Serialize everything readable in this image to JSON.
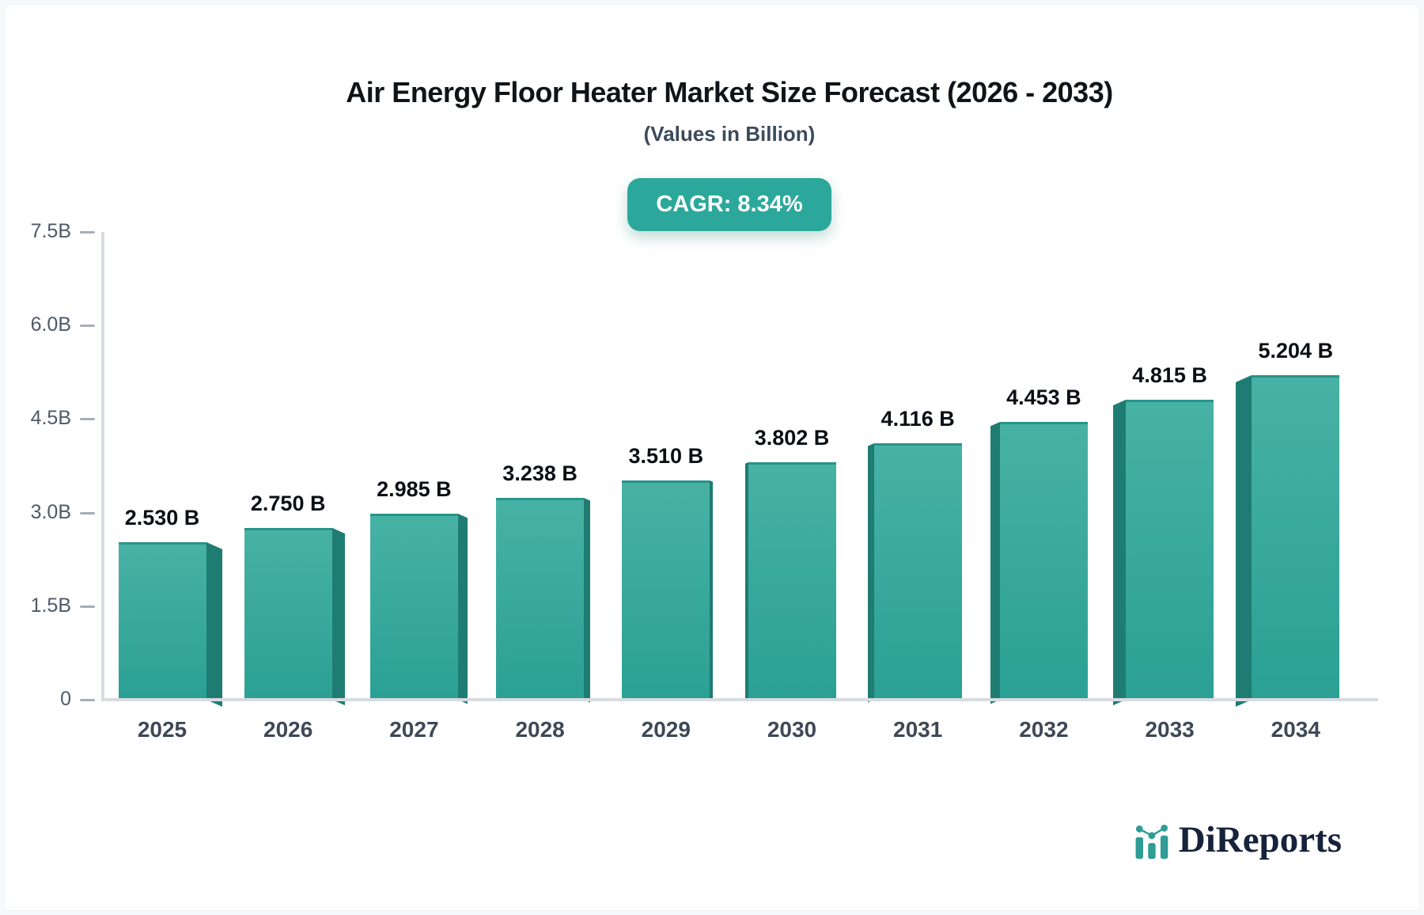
{
  "header": {
    "title": "Air Energy Floor Heater Market Size Forecast (2026 - 2033)",
    "subtitle": "(Values in Billion)",
    "cagr_badge": "CAGR: 8.34%"
  },
  "chart_data": {
    "type": "bar",
    "title": "Air Energy Floor Heater Market Size Forecast (2026 - 2033)",
    "subtitle": "(Values in Billion)",
    "xlabel": "",
    "ylabel": "Values in Billion",
    "ylim": [
      0,
      7.5
    ],
    "grid": false,
    "legend": false,
    "categories": [
      "2025",
      "2026",
      "2027",
      "2028",
      "2029",
      "2030",
      "2031",
      "2032",
      "2033",
      "2034"
    ],
    "values": [
      2.53,
      2.75,
      2.985,
      3.238,
      3.51,
      3.802,
      4.116,
      4.453,
      4.815,
      5.204
    ],
    "value_labels": [
      "2.530 B",
      "2.750 B",
      "2.985 B",
      "3.238 B",
      "3.510 B",
      "3.802 B",
      "4.116 B",
      "4.453 B",
      "4.815 B",
      "5.204 B"
    ],
    "y_ticks": [
      {
        "value": 0,
        "label": "0"
      },
      {
        "value": 1.5,
        "label": "1.5B"
      },
      {
        "value": 3.0,
        "label": "3.0B"
      },
      {
        "value": 4.5,
        "label": "4.5B"
      },
      {
        "value": 6.0,
        "label": "6.0B"
      },
      {
        "value": 7.5,
        "label": "7.5B"
      }
    ]
  },
  "colors": {
    "bar_face_top": "#47b2a4",
    "bar_face_bottom": "#2ba094",
    "bar_top_edge": "#27948a",
    "bar_side": "#1e7c73",
    "badge_background": "#2ba89b",
    "axis_line": "#d8dbe1",
    "tick_text": "#4e5a68",
    "brand_navy": "#16233c",
    "brand_teal": "#2f9d95"
  },
  "footer": {
    "brand_name": "DiReports"
  }
}
